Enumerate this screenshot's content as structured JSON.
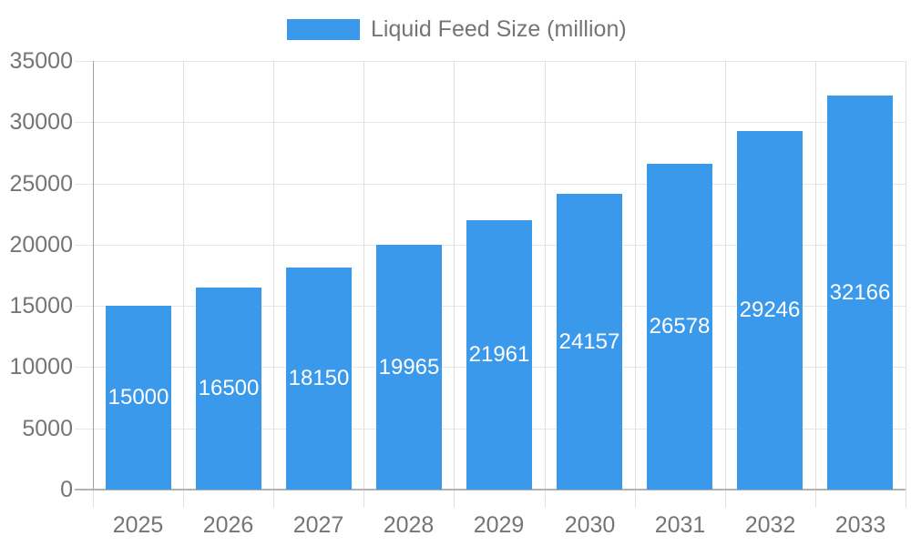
{
  "chart_data": {
    "type": "bar",
    "title": "Liquid Feed Size (million)",
    "categories": [
      "2025",
      "2026",
      "2027",
      "2028",
      "2029",
      "2030",
      "2031",
      "2032",
      "2033"
    ],
    "values": [
      15000,
      16500,
      18150,
      19965,
      21961,
      24157,
      26578,
      29246,
      32166
    ],
    "series": [
      {
        "name": "Liquid Feed Size (million)",
        "values": [
          15000,
          16500,
          18150,
          19965,
          21961,
          24157,
          26578,
          29246,
          32166
        ]
      }
    ],
    "xlabel": "",
    "ylabel": "",
    "ylim": [
      0,
      35000
    ],
    "ytick_step": 5000,
    "ytick_labels": [
      "0",
      "5000",
      "10000",
      "15000",
      "20000",
      "25000",
      "30000",
      "35000"
    ],
    "grid": true,
    "legend_position": "top",
    "bar_color": "#3b99ec",
    "bar_label_color": "#ffffff",
    "axis_text_color": "#757575",
    "h_gridline_color": "#e6e6e6",
    "v_gridline_color": "#e0e0e0",
    "y_axis_line_color": "#9e9e9e",
    "baseline_color": "#b3b3b3",
    "background_color": "#ffffff"
  }
}
